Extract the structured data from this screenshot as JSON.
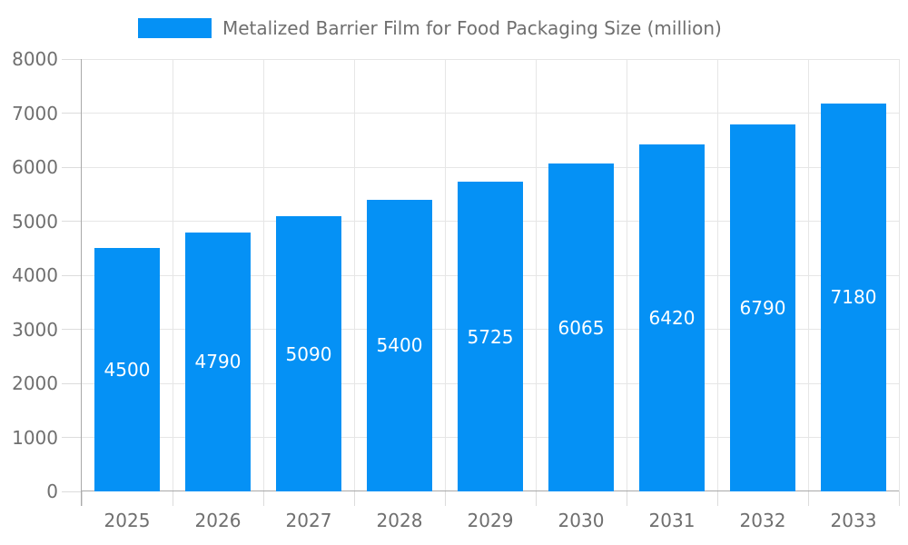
{
  "chart_data": {
    "type": "bar",
    "title": "",
    "legend": {
      "label": "Metalized Barrier Film for Food Packaging Size (million)",
      "position": "top"
    },
    "categories": [
      "2025",
      "2026",
      "2027",
      "2028",
      "2029",
      "2030",
      "2031",
      "2032",
      "2033"
    ],
    "values": [
      4500,
      4790,
      5090,
      5400,
      5725,
      6065,
      6420,
      6790,
      7180
    ],
    "bar_value_labels": [
      "4500",
      "4790",
      "5090",
      "5400",
      "5725",
      "6065",
      "6420",
      "6790",
      "7180"
    ],
    "xlabel": "",
    "ylabel": "",
    "ylim": [
      0,
      8000
    ],
    "ytick_step": 1000,
    "ytick_labels": [
      "0",
      "1000",
      "2000",
      "3000",
      "4000",
      "5000",
      "6000",
      "7000",
      "8000"
    ],
    "grid": true,
    "bar_labels_position": "inside-center",
    "colors": {
      "bar": "#0591f5",
      "bar_label_text": "#ffffff",
      "grid": "#e6e6e6",
      "axis": "#a9a9a9",
      "tick": "#dcdcdc",
      "tick_text": "#6f6f6f",
      "legend_text": "#6f6f6f",
      "background": "#ffffff"
    }
  }
}
